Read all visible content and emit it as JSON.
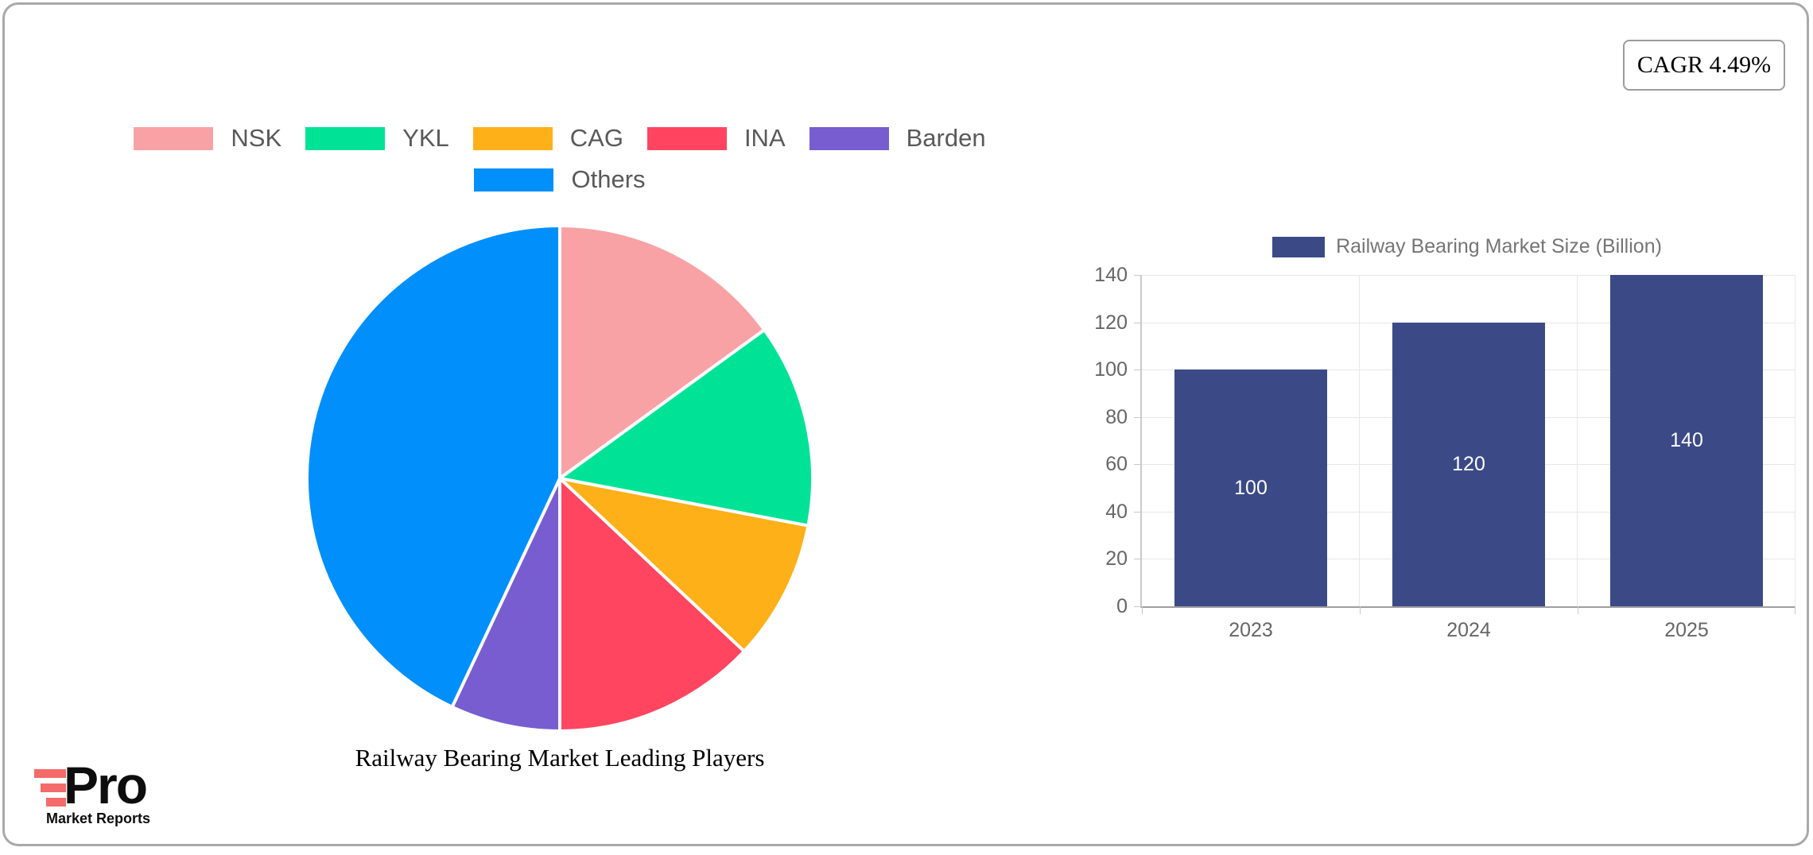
{
  "cagr_badge": {
    "label": "CAGR 4.49%"
  },
  "logo": {
    "title": "Pro",
    "subtitle": "Market Reports",
    "bar_color": "#F56A6A"
  },
  "card": {
    "background": "#ffffff",
    "border_color": "#a9a9a9"
  },
  "chart_data": [
    {
      "type": "pie",
      "title": "Railway Bearing Market Leading Players",
      "labels": [
        "NSK",
        "YKL",
        "CAG",
        "INA",
        "Barden",
        "Others"
      ],
      "values": [
        15,
        13,
        9,
        13,
        7,
        43
      ],
      "colors": [
        "#F8A2A6",
        "#00E396",
        "#FEB019",
        "#FF4560",
        "#775DD0",
        "#008FFB"
      ],
      "legend_position": "top",
      "start_angle": "12 o'clock, clockwise",
      "slice_stroke": "#ffffff"
    },
    {
      "type": "bar",
      "categories": [
        "2023",
        "2024",
        "2025"
      ],
      "series": [
        {
          "name": "Railway Bearing Market Size (Billion)",
          "values": [
            100,
            120,
            140
          ]
        }
      ],
      "bar_color": "#3B4A87",
      "value_label_color": "#ffffff",
      "ylim": [
        0,
        140
      ],
      "yticks": [
        0,
        20,
        40,
        60,
        80,
        100,
        120,
        140
      ],
      "grid": true,
      "legend_position": "top"
    }
  ]
}
